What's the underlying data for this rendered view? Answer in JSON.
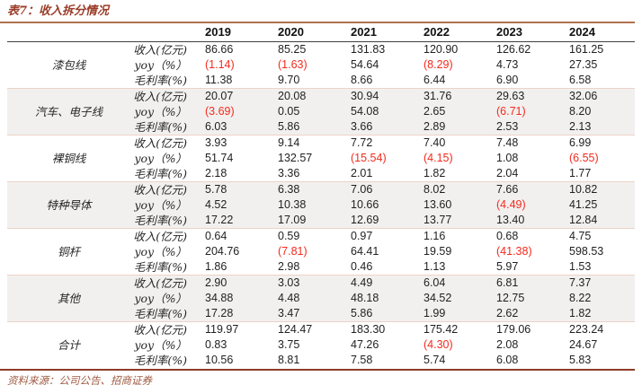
{
  "title": {
    "text": "表7：收入拆分情况"
  },
  "footer": {
    "text": "资料来源：公司公告、招商证券"
  },
  "colors": {
    "accent": "#9a3b26",
    "top_rule": "#b3714d",
    "bottom_rule": "#8e3c28",
    "header_rule": "#3f3f3f",
    "negative": "#f42a1d",
    "stripe": "#f2f0ef",
    "footer_text": "#a05a42"
  },
  "chart_data": {
    "type": "table",
    "title": "表7：收入拆分情况",
    "years": [
      "2019",
      "2020",
      "2021",
      "2022",
      "2023",
      "2024"
    ],
    "metrics": [
      "收入(亿元)",
      "yoy（%）",
      "毛利率(%)"
    ],
    "groups": [
      {
        "name": "漆包线",
        "shaded": false,
        "rows": [
          {
            "label": "收入(亿元)",
            "values": [
              "86.66",
              "85.25",
              "131.83",
              "120.90",
              "126.62",
              "161.25"
            ]
          },
          {
            "label": "yoy（%）",
            "values": [
              "(1.14)",
              "(1.63)",
              "54.64",
              "(8.29)",
              "4.73",
              "27.35"
            ]
          },
          {
            "label": "毛利率(%)",
            "values": [
              "11.38",
              "9.70",
              "8.66",
              "6.44",
              "6.90",
              "6.58"
            ]
          }
        ]
      },
      {
        "name": "汽车、电子线",
        "shaded": true,
        "rows": [
          {
            "label": "收入(亿元)",
            "values": [
              "20.07",
              "20.08",
              "30.94",
              "31.76",
              "29.63",
              "32.06"
            ]
          },
          {
            "label": "yoy（%）",
            "values": [
              "(3.69)",
              "0.05",
              "54.08",
              "2.65",
              "(6.71)",
              "8.20"
            ]
          },
          {
            "label": "毛利率(%)",
            "values": [
              "6.03",
              "5.86",
              "3.66",
              "2.89",
              "2.53",
              "2.13"
            ]
          }
        ]
      },
      {
        "name": "裸铜线",
        "shaded": false,
        "rows": [
          {
            "label": "收入(亿元)",
            "values": [
              "3.93",
              "9.14",
              "7.72",
              "7.40",
              "7.48",
              "6.99"
            ]
          },
          {
            "label": "yoy（%）",
            "values": [
              "51.74",
              "132.57",
              "(15.54)",
              "(4.15)",
              "1.08",
              "(6.55)"
            ]
          },
          {
            "label": "毛利率(%)",
            "values": [
              "2.18",
              "3.36",
              "2.01",
              "1.82",
              "2.04",
              "1.77"
            ]
          }
        ]
      },
      {
        "name": "特种导体",
        "shaded": true,
        "rows": [
          {
            "label": "收入(亿元)",
            "values": [
              "5.78",
              "6.38",
              "7.06",
              "8.02",
              "7.66",
              "10.82"
            ]
          },
          {
            "label": "yoy（%）",
            "values": [
              "4.52",
              "10.38",
              "10.66",
              "13.60",
              "(4.49)",
              "41.25"
            ]
          },
          {
            "label": "毛利率(%)",
            "values": [
              "17.22",
              "17.09",
              "12.69",
              "13.77",
              "13.40",
              "12.84"
            ]
          }
        ]
      },
      {
        "name": "铜杆",
        "shaded": false,
        "rows": [
          {
            "label": "收入(亿元)",
            "values": [
              "0.64",
              "0.59",
              "0.97",
              "1.16",
              "0.68",
              "4.75"
            ]
          },
          {
            "label": "yoy（%）",
            "values": [
              "204.76",
              "(7.81)",
              "64.41",
              "19.59",
              "(41.38)",
              "598.53"
            ]
          },
          {
            "label": "毛利率(%)",
            "values": [
              "1.86",
              "2.98",
              "0.46",
              "1.13",
              "5.97",
              "1.53"
            ]
          }
        ]
      },
      {
        "name": "其他",
        "shaded": true,
        "rows": [
          {
            "label": "收入(亿元)",
            "values": [
              "2.90",
              "3.03",
              "4.49",
              "6.04",
              "6.81",
              "7.37"
            ]
          },
          {
            "label": "yoy（%）",
            "values": [
              "34.88",
              "4.48",
              "48.18",
              "34.52",
              "12.75",
              "8.22"
            ]
          },
          {
            "label": "毛利率(%)",
            "values": [
              "17.28",
              "3.47",
              "5.86",
              "1.99",
              "2.62",
              "1.82"
            ]
          }
        ]
      },
      {
        "name": "合计",
        "shaded": false,
        "rows": [
          {
            "label": "收入(亿元)",
            "values": [
              "119.97",
              "124.47",
              "183.30",
              "175.42",
              "179.06",
              "223.24"
            ]
          },
          {
            "label": "yoy（%）",
            "values": [
              "0.83",
              "3.75",
              "47.26",
              "(4.30)",
              "2.08",
              "24.67"
            ]
          },
          {
            "label": "毛利率(%)",
            "values": [
              "10.56",
              "8.81",
              "7.58",
              "5.74",
              "6.08",
              "5.83"
            ]
          }
        ]
      }
    ]
  }
}
